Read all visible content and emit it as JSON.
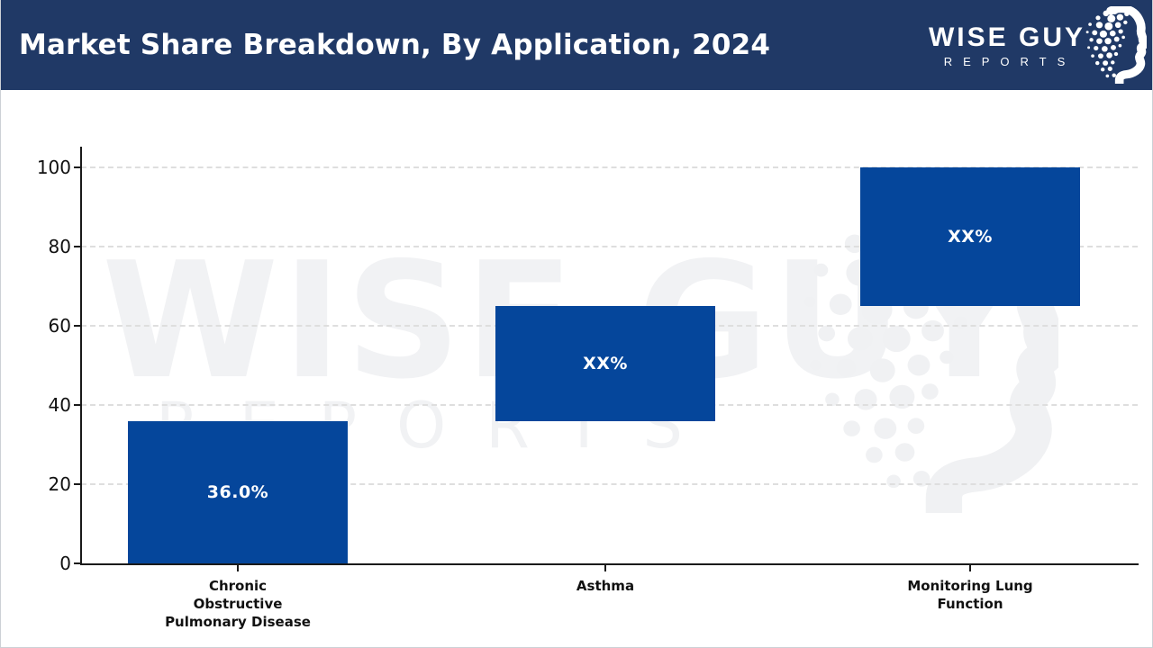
{
  "header": {
    "title": "Market Share Breakdown, By Application, 2024",
    "logo": {
      "line1": "WISE GUY",
      "line2": "REPORTS"
    },
    "background_color": "#203966",
    "text_color": "#ffffff"
  },
  "watermark": {
    "line1": "WISE GUY",
    "line2": "REPORTS"
  },
  "chart_data": {
    "type": "bar",
    "subtype": "floating-segment (waterfall-style market share)",
    "title": "Market Share Breakdown, By Application, 2024",
    "categories": [
      "Chronic Obstructive Pulmonary Disease",
      "Asthma",
      "Monitoring Lung Function"
    ],
    "category_label_lines": [
      [
        "Chronic",
        "Obstructive",
        "Pulmonary Disease"
      ],
      [
        "Asthma"
      ],
      [
        "Monitoring Lung",
        "Function"
      ]
    ],
    "segments": [
      {
        "category": "Chronic Obstructive Pulmonary Disease",
        "start": 0,
        "end": 36,
        "label": "36.0%"
      },
      {
        "category": "Asthma",
        "start": 36,
        "end": 65,
        "label": "XX%"
      },
      {
        "category": "Monitoring Lung Function",
        "start": 65,
        "end": 100,
        "label": "XX%"
      }
    ],
    "ylim": [
      0,
      100
    ],
    "yticks": [
      0,
      20,
      40,
      60,
      80,
      100
    ],
    "grid": "horizontal dashed",
    "legend": "none",
    "bar_color": "#05469b",
    "bar_label_color": "#ffffff",
    "axis_color": "#1a1a1a",
    "gridline_color": "#dedede"
  }
}
